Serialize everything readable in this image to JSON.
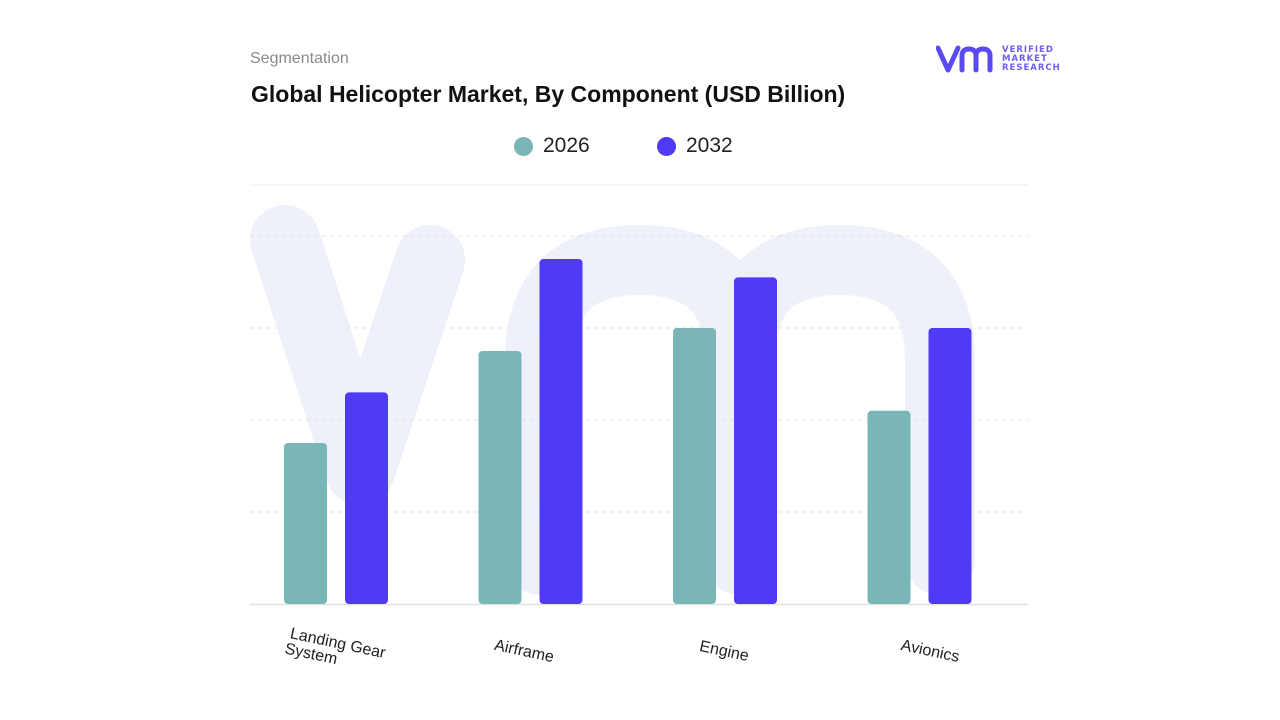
{
  "header": {
    "kicker": "Segmentation",
    "title": "Global Helicopter Market, By Component (USD Billion)"
  },
  "logo": {
    "line1": "VERIFIED",
    "line2": "MARKET",
    "line3": "RESEARCH",
    "mark_color": "#5b4af2"
  },
  "chart_data": {
    "type": "bar",
    "title": "Global Helicopter Market, By Component (USD Billion)",
    "categories": [
      "Landing Gear System",
      "Airframe",
      "Engine",
      "Avionics"
    ],
    "series": [
      {
        "name": "2026",
        "color": "#7ab5b8",
        "values": [
          1.75,
          2.75,
          3.0,
          2.1
        ]
      },
      {
        "name": "2032",
        "color": "#4f3af5",
        "values": [
          2.3,
          3.75,
          3.55,
          3.0
        ]
      }
    ],
    "xlabel": "",
    "ylabel": "",
    "ylim": [
      0,
      4.0
    ],
    "grid": true,
    "legend": "top-center",
    "y_ticks_visible": false
  }
}
